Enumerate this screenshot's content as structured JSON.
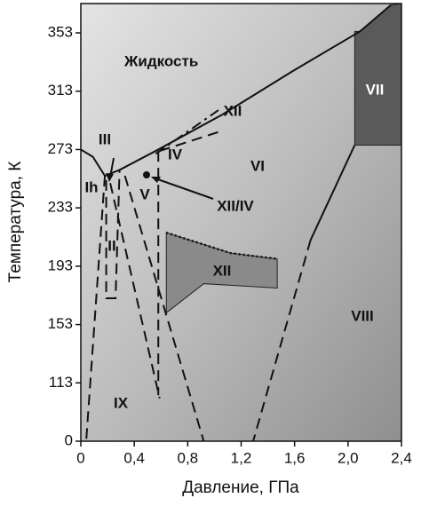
{
  "chart_data": {
    "type": "phase-diagram",
    "x_label": "Давление, ГПа",
    "y_label": "Температура, К",
    "xlim": [
      0,
      2.4
    ],
    "xticks": [
      0,
      {
        "value": 0.4,
        "label": "0,4"
      },
      {
        "value": 0.8,
        "label": "0,8"
      },
      {
        "value": 1.2,
        "label": "1,2"
      },
      {
        "value": 1.6,
        "label": "1,6"
      },
      {
        "value": 2.0,
        "label": "2,0"
      },
      {
        "value": 2.4,
        "label": "2,4"
      }
    ],
    "ylim": [
      0,
      373
    ],
    "yticks": [
      0,
      113,
      153,
      193,
      233,
      273,
      313,
      353
    ],
    "regions": [
      {
        "x": [
          2.09,
          2.32,
          2.4,
          2.4,
          2.05,
          2.05
        ],
        "y": [
          354,
          372,
          373,
          276,
          276,
          354
        ],
        "color": "#5a5a5a"
      },
      {
        "x": [
          0.64,
          0.64,
          0.92,
          1.47,
          1.47,
          1.12,
          0.64
        ],
        "y": [
          216,
          161,
          181,
          178,
          198,
          202,
          216
        ],
        "color": "#8a8a8a"
      }
    ],
    "boundaries": [
      {
        "x": [
          0,
          0.09,
          0.18,
          0.29,
          0.56,
          1.06,
          1.59,
          2.09,
          2.32
        ],
        "y": [
          273,
          268,
          255,
          259,
          272,
          297,
          327,
          354,
          372
        ],
        "style": "solid"
      },
      {
        "x": [
          2.05,
          1.72
        ],
        "y": [
          276,
          211
        ],
        "style": "solid"
      },
      {
        "x": [
          1.72,
          1.29
        ],
        "y": [
          211,
          0
        ],
        "style": "dashed"
      },
      {
        "x": [
          0.58,
          0.58
        ],
        "y": [
          272,
          89
        ],
        "style": "dashed"
      },
      {
        "x": [
          0.18,
          0.04
        ],
        "y": [
          255,
          0
        ],
        "style": "dashed"
      },
      {
        "x": [
          0.19,
          0.19,
          0.26,
          0.29
        ],
        "y": [
          252,
          171,
          171,
          259
        ],
        "style": "dashed"
      },
      {
        "x": [
          0.22,
          0.59
        ],
        "y": [
          250,
          83
        ],
        "style": "dashed"
      },
      {
        "x": [
          0.33,
          0.92
        ],
        "y": [
          255,
          0
        ],
        "style": "dashed"
      },
      {
        "x": [
          0.56,
          1.03
        ],
        "y": [
          270,
          300
        ],
        "style": "dashdot"
      },
      {
        "x": [
          0.59,
          1.03
        ],
        "y": [
          272,
          285
        ],
        "style": "dashed"
      },
      {
        "x": [
          0.64,
          1.12,
          1.47
        ],
        "y": [
          216,
          202,
          198
        ],
        "style": "dotted"
      }
    ],
    "region_labels": [
      "Жидкость",
      "VII",
      "XII",
      "III",
      "Ih",
      "IV",
      "V",
      "VI",
      "XII/IV",
      "II",
      "XII",
      "VIII",
      "IX"
    ]
  }
}
